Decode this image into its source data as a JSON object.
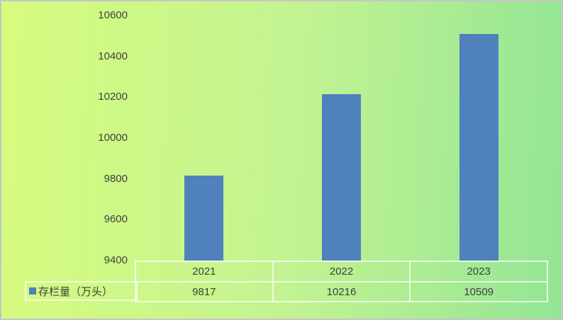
{
  "chart_data": {
    "type": "bar",
    "title": "",
    "categories": [
      "2021",
      "2022",
      "2023"
    ],
    "series": [
      {
        "name": "存栏量（万头）",
        "values": [
          9817,
          10216,
          10509
        ]
      }
    ],
    "ylim": [
      9400,
      10600
    ],
    "yticks": [
      9400,
      9600,
      9800,
      10000,
      10200,
      10400,
      10600
    ],
    "grid": false,
    "legend_position": "bottom-left",
    "data_table_shown": true,
    "xlabel": "",
    "ylabel": ""
  },
  "legend": {
    "label": "存栏量（万头）"
  },
  "table": {
    "years": [
      "2021",
      "2022",
      "2023"
    ],
    "values": [
      "9817",
      "10216",
      "10509"
    ]
  },
  "colors": {
    "bar": "#4f81bd",
    "legend_swatch": "#4f81bd",
    "text": "#404040",
    "background_gradient_left": "#d6fc7e",
    "background_gradient_right": "#93e594",
    "table_border": "rgba(255,255,255,0.72)",
    "outer_border": "#c6c6c6"
  }
}
